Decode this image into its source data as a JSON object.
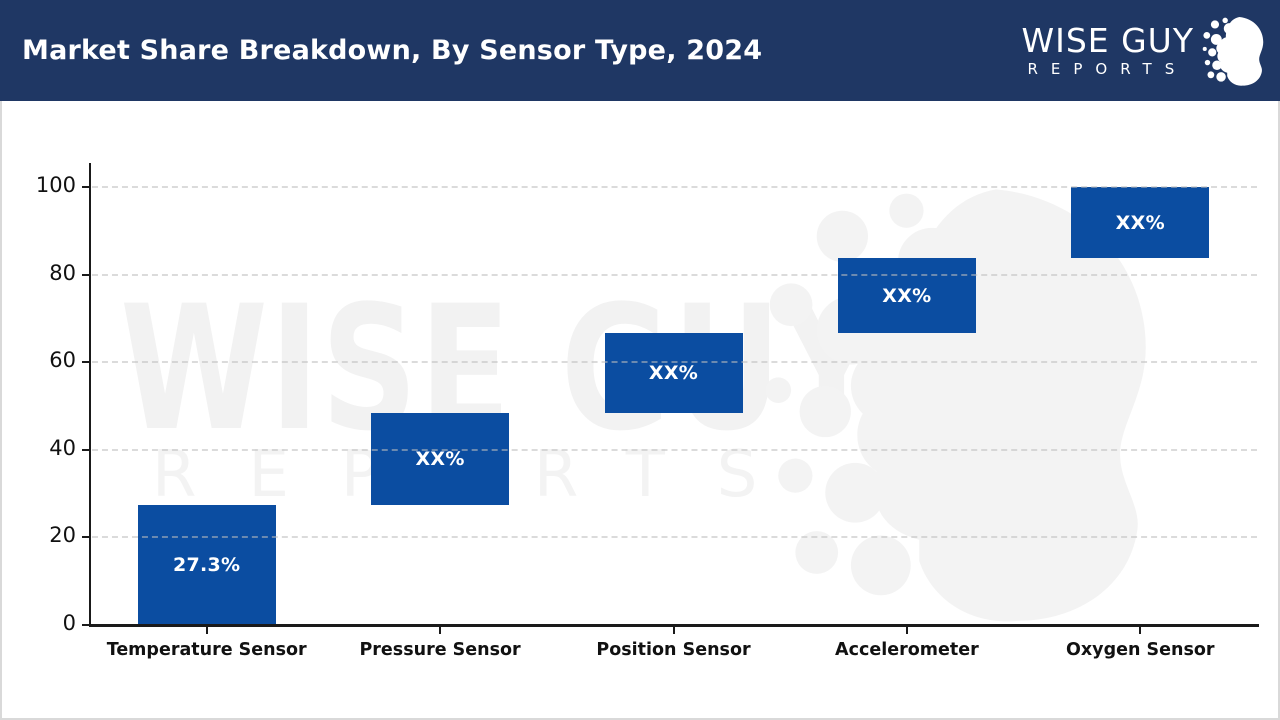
{
  "header": {
    "title": "Market Share Breakdown, By Sensor Type, 2024",
    "bg_color": "#1F3764",
    "logo": {
      "line1": "WISE GUY",
      "line2": "REPORTS",
      "face_icon": "dotted-face-profile"
    }
  },
  "watermark": {
    "line1": "WISE GUY",
    "line2": "REPORTS"
  },
  "chart_data": {
    "type": "bar",
    "subtype": "floating-waterfall",
    "title": "Market Share Breakdown, By Sensor Type, 2024",
    "categories": [
      "Temperature Sensor",
      "Pressure Sensor",
      "Position Sensor",
      "Accelerometer",
      "Oxygen Sensor"
    ],
    "bars": [
      {
        "category": "Temperature Sensor",
        "start": 0,
        "end": 27.3,
        "label": "27.3%"
      },
      {
        "category": "Pressure Sensor",
        "start": 27.3,
        "end": 48.5,
        "label": "XX%"
      },
      {
        "category": "Position Sensor",
        "start": 48.5,
        "end": 66.7,
        "label": "XX%"
      },
      {
        "category": "Accelerometer",
        "start": 66.7,
        "end": 83.7,
        "label": "XX%"
      },
      {
        "category": "Oxygen Sensor",
        "start": 83.7,
        "end": 100,
        "label": "XX%"
      }
    ],
    "yticks": [
      0,
      20,
      40,
      60,
      80,
      100
    ],
    "ylim": [
      0,
      105
    ],
    "xlabel": "",
    "ylabel": "",
    "grid": "horizontal-dashed",
    "legend": "none",
    "bar_color": "#0B4DA1",
    "bar_label_color": "#FFFFFF",
    "axis_color": "#1a1a1a"
  }
}
